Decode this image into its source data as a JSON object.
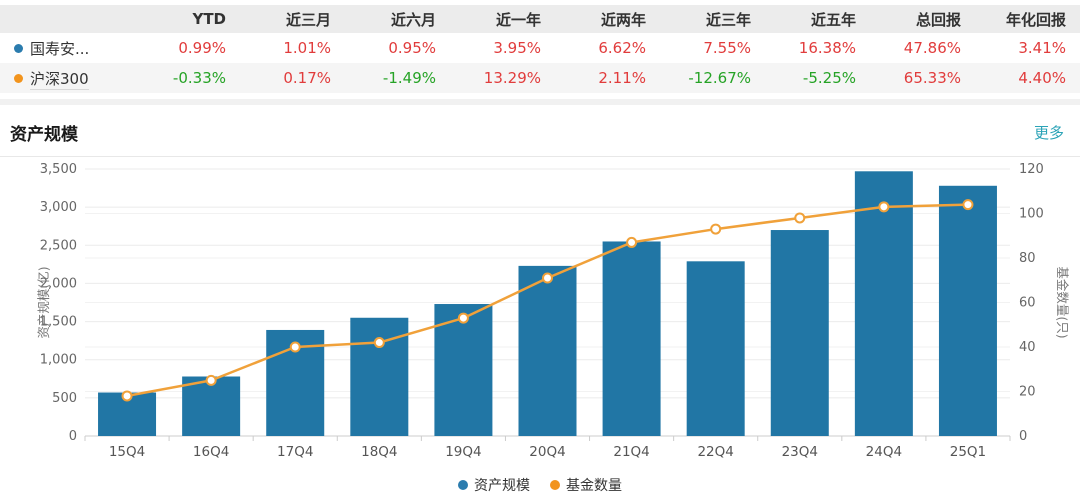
{
  "performance_table": {
    "columns": [
      "",
      "YTD",
      "近三月",
      "近六月",
      "近一年",
      "近两年",
      "近三年",
      "近五年",
      "总回报",
      "年化回报"
    ],
    "rows": [
      {
        "label": "国寿安...",
        "dot_color": "#2b7cae",
        "underline": false,
        "values": [
          "0.99%",
          "1.01%",
          "0.95%",
          "3.95%",
          "6.62%",
          "7.55%",
          "16.38%",
          "47.86%",
          "3.41%"
        ],
        "trends": [
          "up",
          "up",
          "up",
          "up",
          "up",
          "up",
          "up",
          "up",
          "up"
        ]
      },
      {
        "label": "沪深300",
        "dot_color": "#f2941d",
        "underline": true,
        "values": [
          "-0.33%",
          "0.17%",
          "-1.49%",
          "13.29%",
          "2.11%",
          "-12.67%",
          "-5.25%",
          "65.33%",
          "4.40%"
        ],
        "trends": [
          "down",
          "up",
          "down",
          "up",
          "up",
          "down",
          "down",
          "up",
          "up"
        ]
      }
    ],
    "up_color": "#e13c3c",
    "down_color": "#26a326"
  },
  "section": {
    "title": "资产规模",
    "more_label": "更多"
  },
  "chart_data": {
    "type": "bar+line combo",
    "categories": [
      "15Q4",
      "16Q4",
      "17Q4",
      "18Q4",
      "19Q4",
      "20Q4",
      "21Q4",
      "22Q4",
      "23Q4",
      "24Q4",
      "25Q1"
    ],
    "series": [
      {
        "name": "资产规模",
        "type": "bar",
        "axis": "left",
        "color": "#2176a5",
        "values": [
          570,
          780,
          1390,
          1550,
          1730,
          2230,
          2550,
          2290,
          2700,
          3470,
          3280
        ]
      },
      {
        "name": "基金数量",
        "type": "line",
        "axis": "right",
        "color": "#f0a13a",
        "marker_fill": "#ffffff",
        "values": [
          18,
          25,
          40,
          42,
          53,
          71,
          87,
          93,
          98,
          103,
          104
        ]
      }
    ],
    "left_axis": {
      "label": "资产规模(亿)",
      "min": 0,
      "max": 3500,
      "tick_step": 500,
      "ticks": [
        "0",
        "500",
        "1,000",
        "1,500",
        "2,000",
        "2,500",
        "3,000",
        "3,500"
      ]
    },
    "right_axis": {
      "label": "基金数量(只)",
      "min": 0,
      "max": 120,
      "tick_step": 20,
      "ticks": [
        "0",
        "20",
        "40",
        "60",
        "80",
        "100",
        "120"
      ]
    },
    "grid": true,
    "legend_position": "bottom",
    "legend": [
      {
        "label": "资产规模",
        "color": "#2b7cae"
      },
      {
        "label": "基金数量",
        "color": "#f2941d"
      }
    ]
  }
}
